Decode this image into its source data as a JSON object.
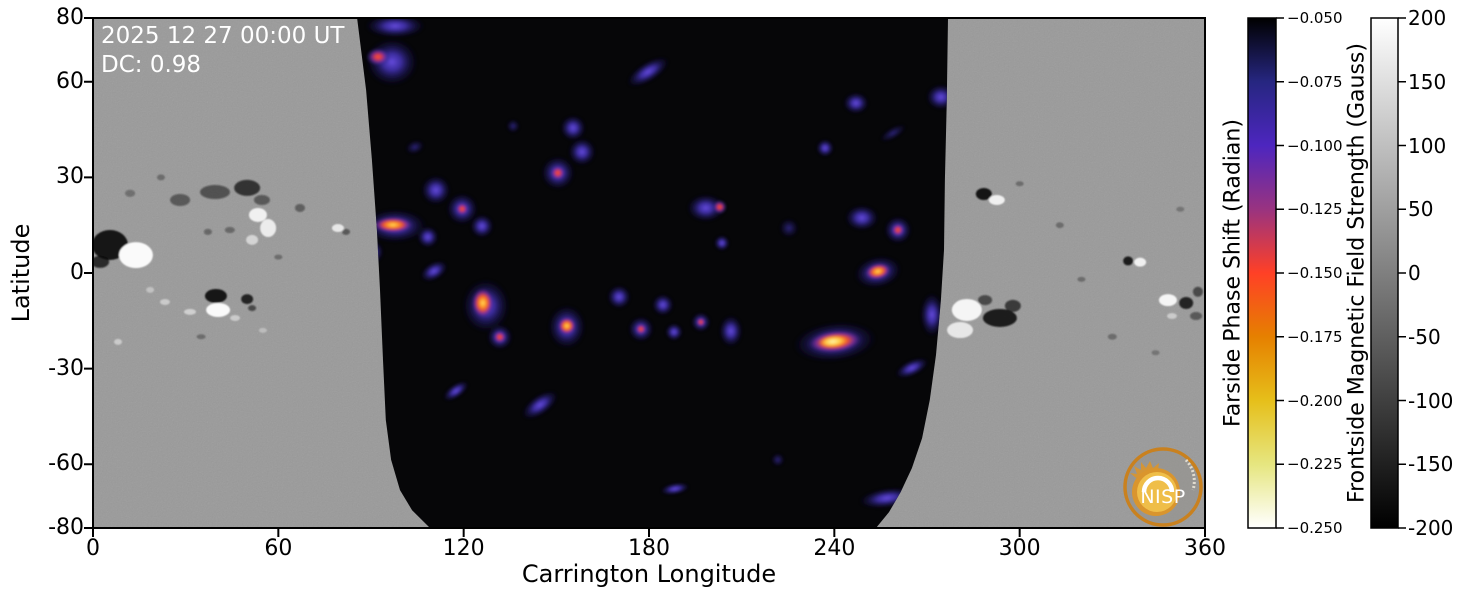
{
  "figure": {
    "annotation": {
      "datetime": "2025 12 27 00:00 UT",
      "dc": "DC: 0.98"
    },
    "x_axis": {
      "label": "Carrington Longitude",
      "ticks": [
        0,
        60,
        120,
        180,
        240,
        300,
        360
      ],
      "range": [
        0,
        360
      ]
    },
    "y_axis": {
      "label": "Latitude",
      "ticks": [
        80,
        60,
        30,
        0,
        -30,
        -60,
        -80
      ],
      "range": [
        -80,
        80
      ]
    },
    "colorbar_phase": {
      "label": "Farside Phase Shift (Radian)",
      "ticks": [
        "−0.050",
        "−0.075",
        "−0.100",
        "−0.125",
        "−0.150",
        "−0.175",
        "−0.200",
        "−0.225",
        "−0.250"
      ],
      "gradient": [
        "#000000",
        "#262680",
        "#4d26bf",
        "#993380",
        "#ff4026",
        "#e68000",
        "#e6bf1a",
        "#e6e680",
        "#ffffff"
      ]
    },
    "colorbar_mag": {
      "label": "Frontside Magnetic Field Strength (Gauss)",
      "ticks": [
        "200",
        "150",
        "100",
        "50",
        "0",
        "-50",
        "-100",
        "-150",
        "-200"
      ],
      "gradient": [
        "#ffffff",
        "#000000"
      ]
    },
    "logo": {
      "text": "NISP",
      "ring_color": "#c9811f",
      "sun_color": "#efbe49",
      "sun_edge_color": "#d9952e"
    },
    "colors": {
      "frontside_gray": "#9a9a9a",
      "farside_black": "#060608",
      "frame": "#000000",
      "annotation_text": "#ffffff",
      "background": "#ffffff"
    }
  },
  "chart_data": {
    "type": "heatmap",
    "title": "",
    "xlabel": "Carrington Longitude",
    "ylabel": "Latitude",
    "xlim": [
      0,
      360
    ],
    "ylim": [
      -80,
      80
    ],
    "observation_time": "2025 12 27 00:00 UT",
    "duty_cycle": 0.98,
    "phase_shift_range": [
      -0.05,
      -0.25
    ],
    "mag_field_range": [
      200,
      -200
    ],
    "farside_boundary": [
      [
        85.5,
        80
      ],
      [
        88.4,
        57.4
      ],
      [
        90.3,
        35.5
      ],
      [
        91.9,
        13.5
      ],
      [
        92.9,
        -5.3
      ],
      [
        93.9,
        -27.3
      ],
      [
        94.8,
        -46.1
      ],
      [
        96.5,
        -58.6
      ],
      [
        99.4,
        -68.1
      ],
      [
        103.3,
        -74.4
      ],
      [
        109.1,
        -80
      ],
      [
        253.5,
        -80
      ],
      [
        257.7,
        -75
      ],
      [
        261.5,
        -68.7
      ],
      [
        265.1,
        -61.2
      ],
      [
        268.4,
        -51.8
      ],
      [
        270.9,
        -39.8
      ],
      [
        272.9,
        -25.7
      ],
      [
        274.5,
        -8.5
      ],
      [
        275.5,
        7.2
      ],
      [
        275.8,
        29.2
      ],
      [
        276.4,
        54.3
      ],
      [
        276.8,
        80
      ]
    ],
    "farside_blobs": [
      [
        96.8,
        66.2,
        26,
        24,
        0,
        "w"
      ],
      [
        92.3,
        67.8,
        12,
        9,
        0,
        "r"
      ],
      [
        97.8,
        77.5,
        30,
        12,
        0,
        "w"
      ],
      [
        179.7,
        63.1,
        24,
        10,
        -32,
        "w"
      ],
      [
        247.0,
        53.3,
        13,
        11,
        0,
        "w"
      ],
      [
        155.4,
        45.5,
        13,
        13,
        0,
        "w"
      ],
      [
        158.3,
        38.0,
        14,
        14,
        0,
        "w"
      ],
      [
        150.5,
        31.4,
        17,
        17,
        0,
        "w"
      ],
      [
        150.5,
        31.4,
        8,
        8,
        0,
        "r"
      ],
      [
        136.0,
        46.1,
        7,
        7,
        0,
        "f"
      ],
      [
        104.2,
        39.5,
        10,
        7,
        -20,
        "f"
      ],
      [
        111.0,
        26.0,
        15,
        15,
        0,
        "w"
      ],
      [
        119.5,
        20.1,
        16,
        16,
        0,
        "w"
      ],
      [
        119.5,
        20.1,
        7,
        7,
        0,
        "r"
      ],
      [
        125.9,
        14.7,
        12,
        12,
        0,
        "w"
      ],
      [
        108.4,
        11.3,
        11,
        11,
        0,
        "w"
      ],
      [
        97.8,
        14.8,
        32,
        17,
        0,
        "w"
      ],
      [
        97.1,
        15.1,
        20,
        8,
        0,
        "o"
      ],
      [
        90.3,
        6.6,
        12,
        12,
        0,
        "w"
      ],
      [
        110.4,
        0.6,
        15,
        9,
        -30,
        "w"
      ],
      [
        127.2,
        -10.3,
        24,
        27,
        0,
        "w"
      ],
      [
        126.2,
        -9.4,
        11,
        15,
        0,
        "o"
      ],
      [
        131.7,
        -20.1,
        13,
        13,
        0,
        "w"
      ],
      [
        131.7,
        -20.1,
        7,
        7,
        0,
        "r"
      ],
      [
        153.4,
        -16.9,
        19,
        22,
        0,
        "w"
      ],
      [
        153.4,
        -16.6,
        9,
        9,
        0,
        "o"
      ],
      [
        170.3,
        -7.5,
        12,
        12,
        0,
        "w"
      ],
      [
        177.4,
        -17.6,
        13,
        13,
        0,
        "w"
      ],
      [
        177.4,
        -17.6,
        6,
        6,
        0,
        "r"
      ],
      [
        184.5,
        -10.0,
        11,
        11,
        0,
        "w"
      ],
      [
        188.1,
        -18.5,
        9,
        9,
        0,
        "w"
      ],
      [
        198.4,
        20.4,
        19,
        14,
        0,
        "w"
      ],
      [
        202.9,
        20.7,
        7,
        7,
        0,
        "r"
      ],
      [
        203.6,
        9.4,
        8,
        8,
        0,
        "w"
      ],
      [
        196.8,
        -15.4,
        10,
        10,
        0,
        "w"
      ],
      [
        196.8,
        -15.4,
        5,
        5,
        0,
        "r"
      ],
      [
        206.5,
        -18.2,
        12,
        16,
        0,
        "w"
      ],
      [
        225.3,
        14.1,
        10,
        10,
        0,
        "f"
      ],
      [
        240.2,
        -21.6,
        42,
        20,
        -6,
        "w"
      ],
      [
        240.2,
        -21.5,
        27,
        11,
        -6,
        "o"
      ],
      [
        239.5,
        -21.5,
        14,
        6,
        -6,
        "O"
      ],
      [
        254.1,
        0.3,
        24,
        16,
        -12,
        "w"
      ],
      [
        254.1,
        0.5,
        13,
        8,
        -12,
        "o"
      ],
      [
        248.9,
        17.3,
        17,
        13,
        0,
        "w"
      ],
      [
        260.6,
        13.5,
        14,
        14,
        0,
        "w"
      ],
      [
        260.6,
        13.5,
        7,
        7,
        0,
        "r"
      ],
      [
        237.0,
        39.2,
        9,
        9,
        0,
        "w"
      ],
      [
        259.0,
        43.9,
        15,
        6,
        -30,
        "f"
      ],
      [
        257.0,
        -70.6,
        28,
        10,
        -8,
        "w"
      ],
      [
        274.5,
        55.2,
        15,
        13,
        0,
        "w"
      ],
      [
        144.7,
        -41.4,
        21,
        10,
        -35,
        "w"
      ],
      [
        117.5,
        -37.0,
        15,
        7,
        -35,
        "w"
      ],
      [
        188.4,
        -67.7,
        15,
        6,
        -10,
        "w"
      ],
      [
        221.7,
        -58.6,
        7,
        7,
        0,
        "f"
      ],
      [
        265.1,
        -29.8,
        18,
        8,
        -25,
        "w"
      ],
      [
        271.6,
        -13.1,
        12,
        22,
        0,
        "w"
      ]
    ],
    "frontside_active_regions": [
      [
        5.5,
        8.8,
        36,
        30,
        "b",
        1
      ],
      [
        13.9,
        5.6,
        34,
        26,
        "w",
        1
      ],
      [
        2.3,
        3.5,
        18,
        12,
        "b",
        0.8
      ],
      [
        28.2,
        22.9,
        20,
        12,
        "b",
        0.5
      ],
      [
        39.5,
        25.4,
        30,
        14,
        "b",
        0.55
      ],
      [
        49.9,
        26.7,
        26,
        16,
        "b",
        0.75
      ],
      [
        54.7,
        22.9,
        16,
        10,
        "b",
        0.5
      ],
      [
        53.4,
        18.2,
        18,
        14,
        "w",
        0.9
      ],
      [
        56.7,
        14.1,
        16,
        18,
        "w",
        0.85
      ],
      [
        51.5,
        10.4,
        12,
        10,
        "w",
        0.6
      ],
      [
        67,
        20.4,
        10,
        8,
        "b",
        0.45
      ],
      [
        79.3,
        14.1,
        12,
        8,
        "w",
        0.8
      ],
      [
        81.9,
        12.9,
        8,
        6,
        "b",
        0.5
      ],
      [
        37.2,
        12.9,
        8,
        6,
        "b",
        0.4
      ],
      [
        44.3,
        13.5,
        10,
        6,
        "b",
        0.4
      ],
      [
        39.8,
        -7.2,
        22,
        14,
        "b",
        1
      ],
      [
        40.5,
        -11.6,
        24,
        14,
        "w",
        1
      ],
      [
        49.9,
        -8.2,
        12,
        10,
        "b",
        0.85
      ],
      [
        51.5,
        -11,
        8,
        6,
        "b",
        0.6
      ],
      [
        23.3,
        -9.1,
        10,
        6,
        "w",
        0.5
      ],
      [
        31.4,
        -12.2,
        12,
        6,
        "w",
        0.55
      ],
      [
        46,
        -14.1,
        10,
        6,
        "w",
        0.5
      ],
      [
        18.5,
        -5.3,
        8,
        6,
        "w",
        0.4
      ],
      [
        8.1,
        -21.6,
        8,
        6,
        "w",
        0.5
      ],
      [
        12,
        25,
        10,
        7,
        "b",
        0.35
      ],
      [
        22,
        30,
        8,
        6,
        "b",
        0.3
      ],
      [
        60,
        5,
        8,
        5,
        "b",
        0.3
      ],
      [
        35,
        -20,
        9,
        5,
        "b",
        0.3
      ],
      [
        55,
        -18,
        8,
        5,
        "w",
        0.35
      ],
      [
        288.4,
        24.8,
        16,
        12,
        "b",
        0.95
      ],
      [
        292.6,
        22.9,
        16,
        10,
        "w",
        0.9
      ],
      [
        282.9,
        -11.6,
        30,
        22,
        "w",
        0.95
      ],
      [
        280.7,
        -17.9,
        26,
        16,
        "w",
        0.8
      ],
      [
        293.6,
        -14.1,
        34,
        18,
        "b",
        0.9
      ],
      [
        297.8,
        -10.3,
        16,
        12,
        "b",
        0.7
      ],
      [
        288.8,
        -8.5,
        14,
        10,
        "b",
        0.6
      ],
      [
        335.1,
        3.8,
        10,
        9,
        "b",
        0.9
      ],
      [
        339,
        3.4,
        12,
        9,
        "w",
        0.9
      ],
      [
        348,
        -8.5,
        18,
        12,
        "w",
        0.95
      ],
      [
        353.9,
        -9.4,
        14,
        12,
        "b",
        0.85
      ],
      [
        357.7,
        -5.9,
        10,
        10,
        "b",
        0.6
      ],
      [
        357.1,
        -13.5,
        12,
        8,
        "b",
        0.5
      ],
      [
        349.3,
        -13.5,
        10,
        6,
        "w",
        0.5
      ],
      [
        313,
        15,
        8,
        6,
        "b",
        0.3
      ],
      [
        320,
        -2,
        8,
        5,
        "b",
        0.3
      ],
      [
        330,
        -20,
        9,
        6,
        "b",
        0.3
      ],
      [
        300,
        28,
        8,
        5,
        "b",
        0.3
      ],
      [
        344,
        -25,
        8,
        5,
        "b",
        0.25
      ],
      [
        352,
        20,
        8,
        5,
        "b",
        0.25
      ]
    ]
  }
}
